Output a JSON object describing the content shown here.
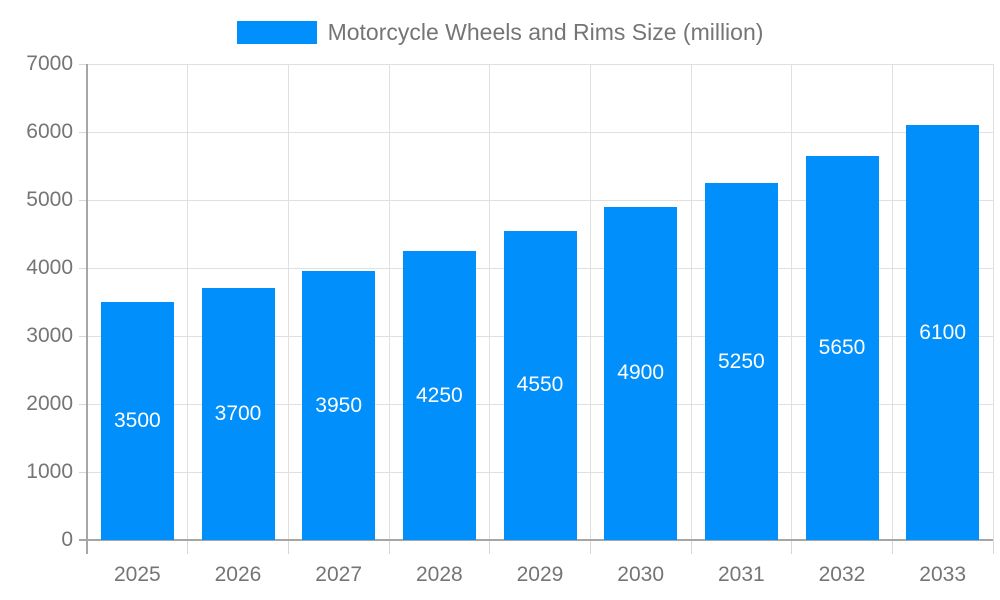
{
  "chart_data": {
    "type": "bar",
    "title": "Motorcycle Wheels and Rims Size (million)",
    "legend": {
      "label": "Motorcycle Wheels and Rims Size (million)",
      "swatch_color": "#008FFB",
      "position": "top"
    },
    "categories": [
      "2025",
      "2026",
      "2027",
      "2028",
      "2029",
      "2030",
      "2031",
      "2032",
      "2033"
    ],
    "series": [
      {
        "name": "Motorcycle Wheels and Rims Size (million)",
        "values": [
          3500,
          3700,
          3950,
          4250,
          4550,
          4900,
          5250,
          5650,
          6100
        ]
      }
    ],
    "data_labels": [
      "3500",
      "3700",
      "3950",
      "4250",
      "4550",
      "4900",
      "5250",
      "5650",
      "6100"
    ],
    "xlabel": "",
    "ylabel": "",
    "ylim": [
      0,
      7000
    ],
    "ytick_step": 1000,
    "yticks": [
      "0",
      "1000",
      "2000",
      "3000",
      "4000",
      "5000",
      "6000",
      "7000"
    ],
    "grid": true,
    "colors": {
      "bar": "#008FFB",
      "bar_label": "#ffffff",
      "axis_text": "#757575",
      "gridline": "#e0e0e0",
      "axis_line": "#a6a6a6"
    }
  }
}
